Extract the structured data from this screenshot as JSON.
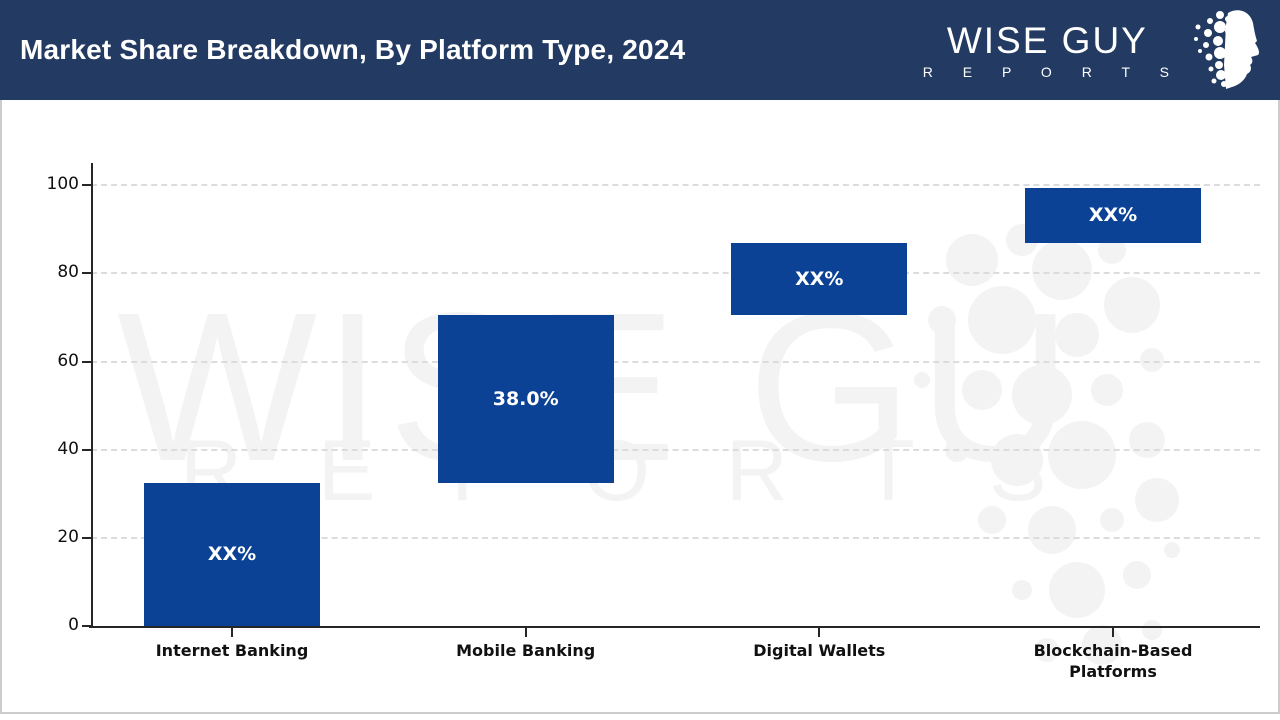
{
  "header": {
    "title": "Market Share Breakdown, By Platform Type, 2024",
    "bg_color": "#233A63",
    "brand": {
      "wordmark": "WISE GUY",
      "reports": "R E P O R T S"
    }
  },
  "watermark": {
    "wordmark": "WISE GU",
    "reports": "R E P O R T S"
  },
  "chart_data": {
    "type": "bar",
    "subtype": "floating-waterfall",
    "title": "Market Share Breakdown, By Platform Type, 2024",
    "xlabel": "",
    "ylabel": "",
    "categories": [
      "Internet Banking",
      "Mobile Banking",
      "Digital Wallets",
      "Blockchain-Based Platforms"
    ],
    "segments": [
      {
        "category": "Internet Banking",
        "start": 0,
        "end": 32.5,
        "label": "XX%"
      },
      {
        "category": "Mobile Banking",
        "start": 32.5,
        "end": 70.5,
        "label": "38.0%"
      },
      {
        "category": "Digital Wallets",
        "start": 70.5,
        "end": 87.0,
        "label": "XX%"
      },
      {
        "category": "Blockchain-Based Platforms",
        "start": 87.0,
        "end": 99.5,
        "label": "XX%"
      }
    ],
    "y_ticks": [
      0,
      20,
      40,
      60,
      80,
      100
    ],
    "ylim": [
      0,
      105
    ],
    "grid": "horizontal-dashed",
    "legend": "none",
    "bar_color": "#0B4295",
    "bar_label_color": "#ffffff",
    "axis_color": "#262626"
  }
}
